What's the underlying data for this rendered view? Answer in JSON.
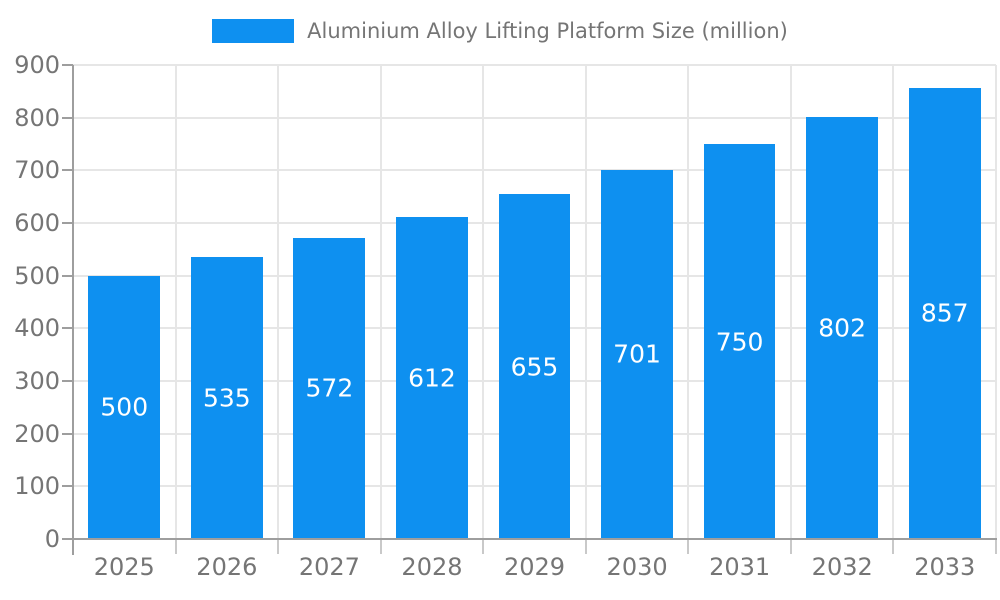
{
  "legend": {
    "label": "Aluminium Alloy Lifting Platform Size (million)",
    "swatch_color": "#0e90f0"
  },
  "chart_data": {
    "type": "bar",
    "title": "Aluminium Alloy Lifting Platform Size (million)",
    "categories": [
      "2025",
      "2026",
      "2027",
      "2028",
      "2029",
      "2030",
      "2031",
      "2032",
      "2033"
    ],
    "values": [
      500,
      535,
      572,
      612,
      655,
      701,
      750,
      802,
      857
    ],
    "xlabel": "",
    "ylabel": "",
    "ylim": [
      0,
      900
    ],
    "ytick_step": 100,
    "grid": true,
    "legend_position": "top-center",
    "bar_width_fraction": 0.7,
    "colors": {
      "bar": "#0e90f0",
      "bar_value_text": "#ffffff",
      "axis_line": "#9e9e9e",
      "grid_line": "#e6e6e6",
      "boundary_tick": "#c9c9c9",
      "tick_label_text": "#757575",
      "legend_text": "#757575",
      "background": "#ffffff"
    }
  }
}
